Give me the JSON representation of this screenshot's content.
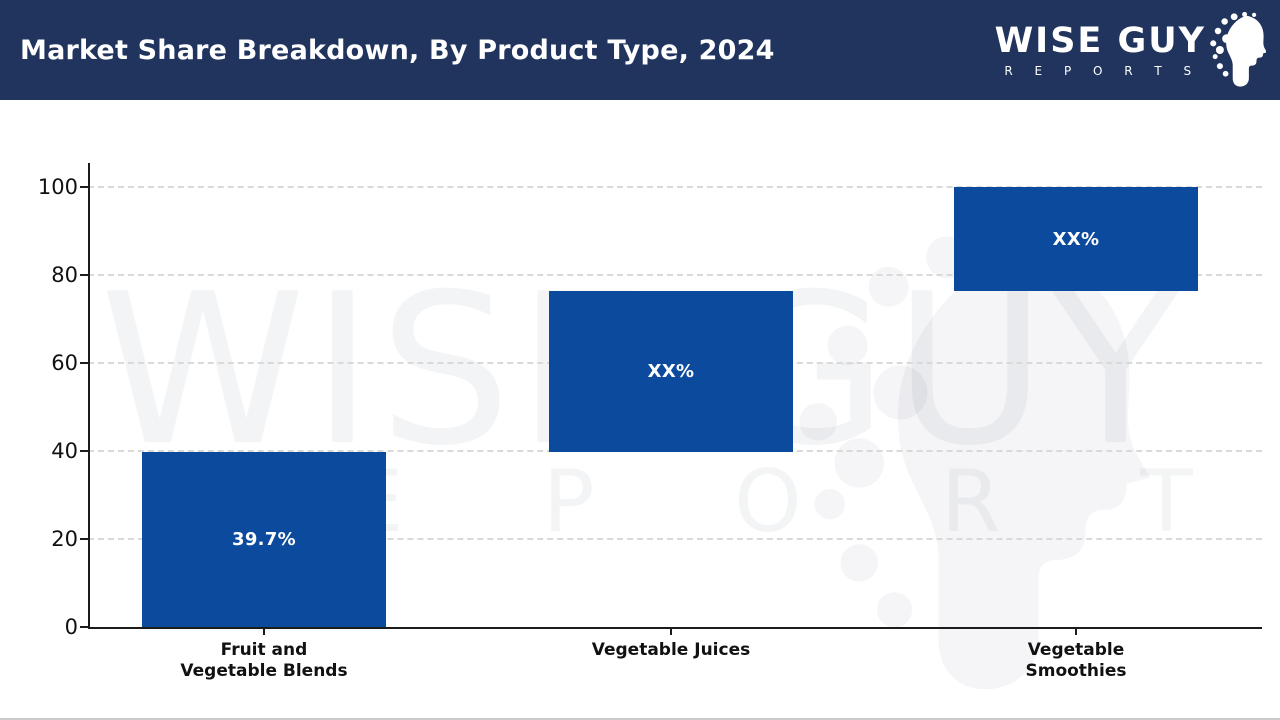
{
  "header": {
    "title": "Market Share Breakdown, By Product Type, 2024",
    "logo": {
      "line1": "WISE GUY",
      "line2": "R E P O R T S"
    }
  },
  "watermark": {
    "line1": "WISE GUY",
    "line2": "R E P O R T S"
  },
  "chart_data": {
    "type": "bar",
    "subtype": "floating-segment-waterfall",
    "title": "Market Share Breakdown, By Product Type, 2024",
    "categories": [
      "Fruit and\nVegetable Blends",
      "Vegetable Juices",
      "Vegetable\nSmoothies"
    ],
    "series": [
      {
        "name": "Market Share %",
        "segments": [
          {
            "category": "Fruit and Vegetable Blends",
            "start": 0,
            "end": 39.7,
            "label": "39.7%"
          },
          {
            "category": "Vegetable Juices",
            "start": 39.7,
            "end": 76.3,
            "label": "XX%"
          },
          {
            "category": "Vegetable Smoothies",
            "start": 76.3,
            "end": 100,
            "label": "XX%"
          }
        ]
      }
    ],
    "xlabel": "",
    "ylabel": "",
    "ylim": [
      0,
      100
    ],
    "yticks": [
      0,
      20,
      40,
      60,
      80,
      100
    ],
    "grid": true,
    "grid_style": "dashed",
    "legend": "none",
    "bar_color": "#0c4a9d",
    "bar_label_color": "#ffffff"
  },
  "colors": {
    "header_bg": "#20345e",
    "bar": "#0c4a9d",
    "gridline": "#d9d9d9",
    "axis": "#1c1c1c",
    "footer_line": "#cbcbcb",
    "watermark": "rgba(25,30,60,0.05)"
  }
}
